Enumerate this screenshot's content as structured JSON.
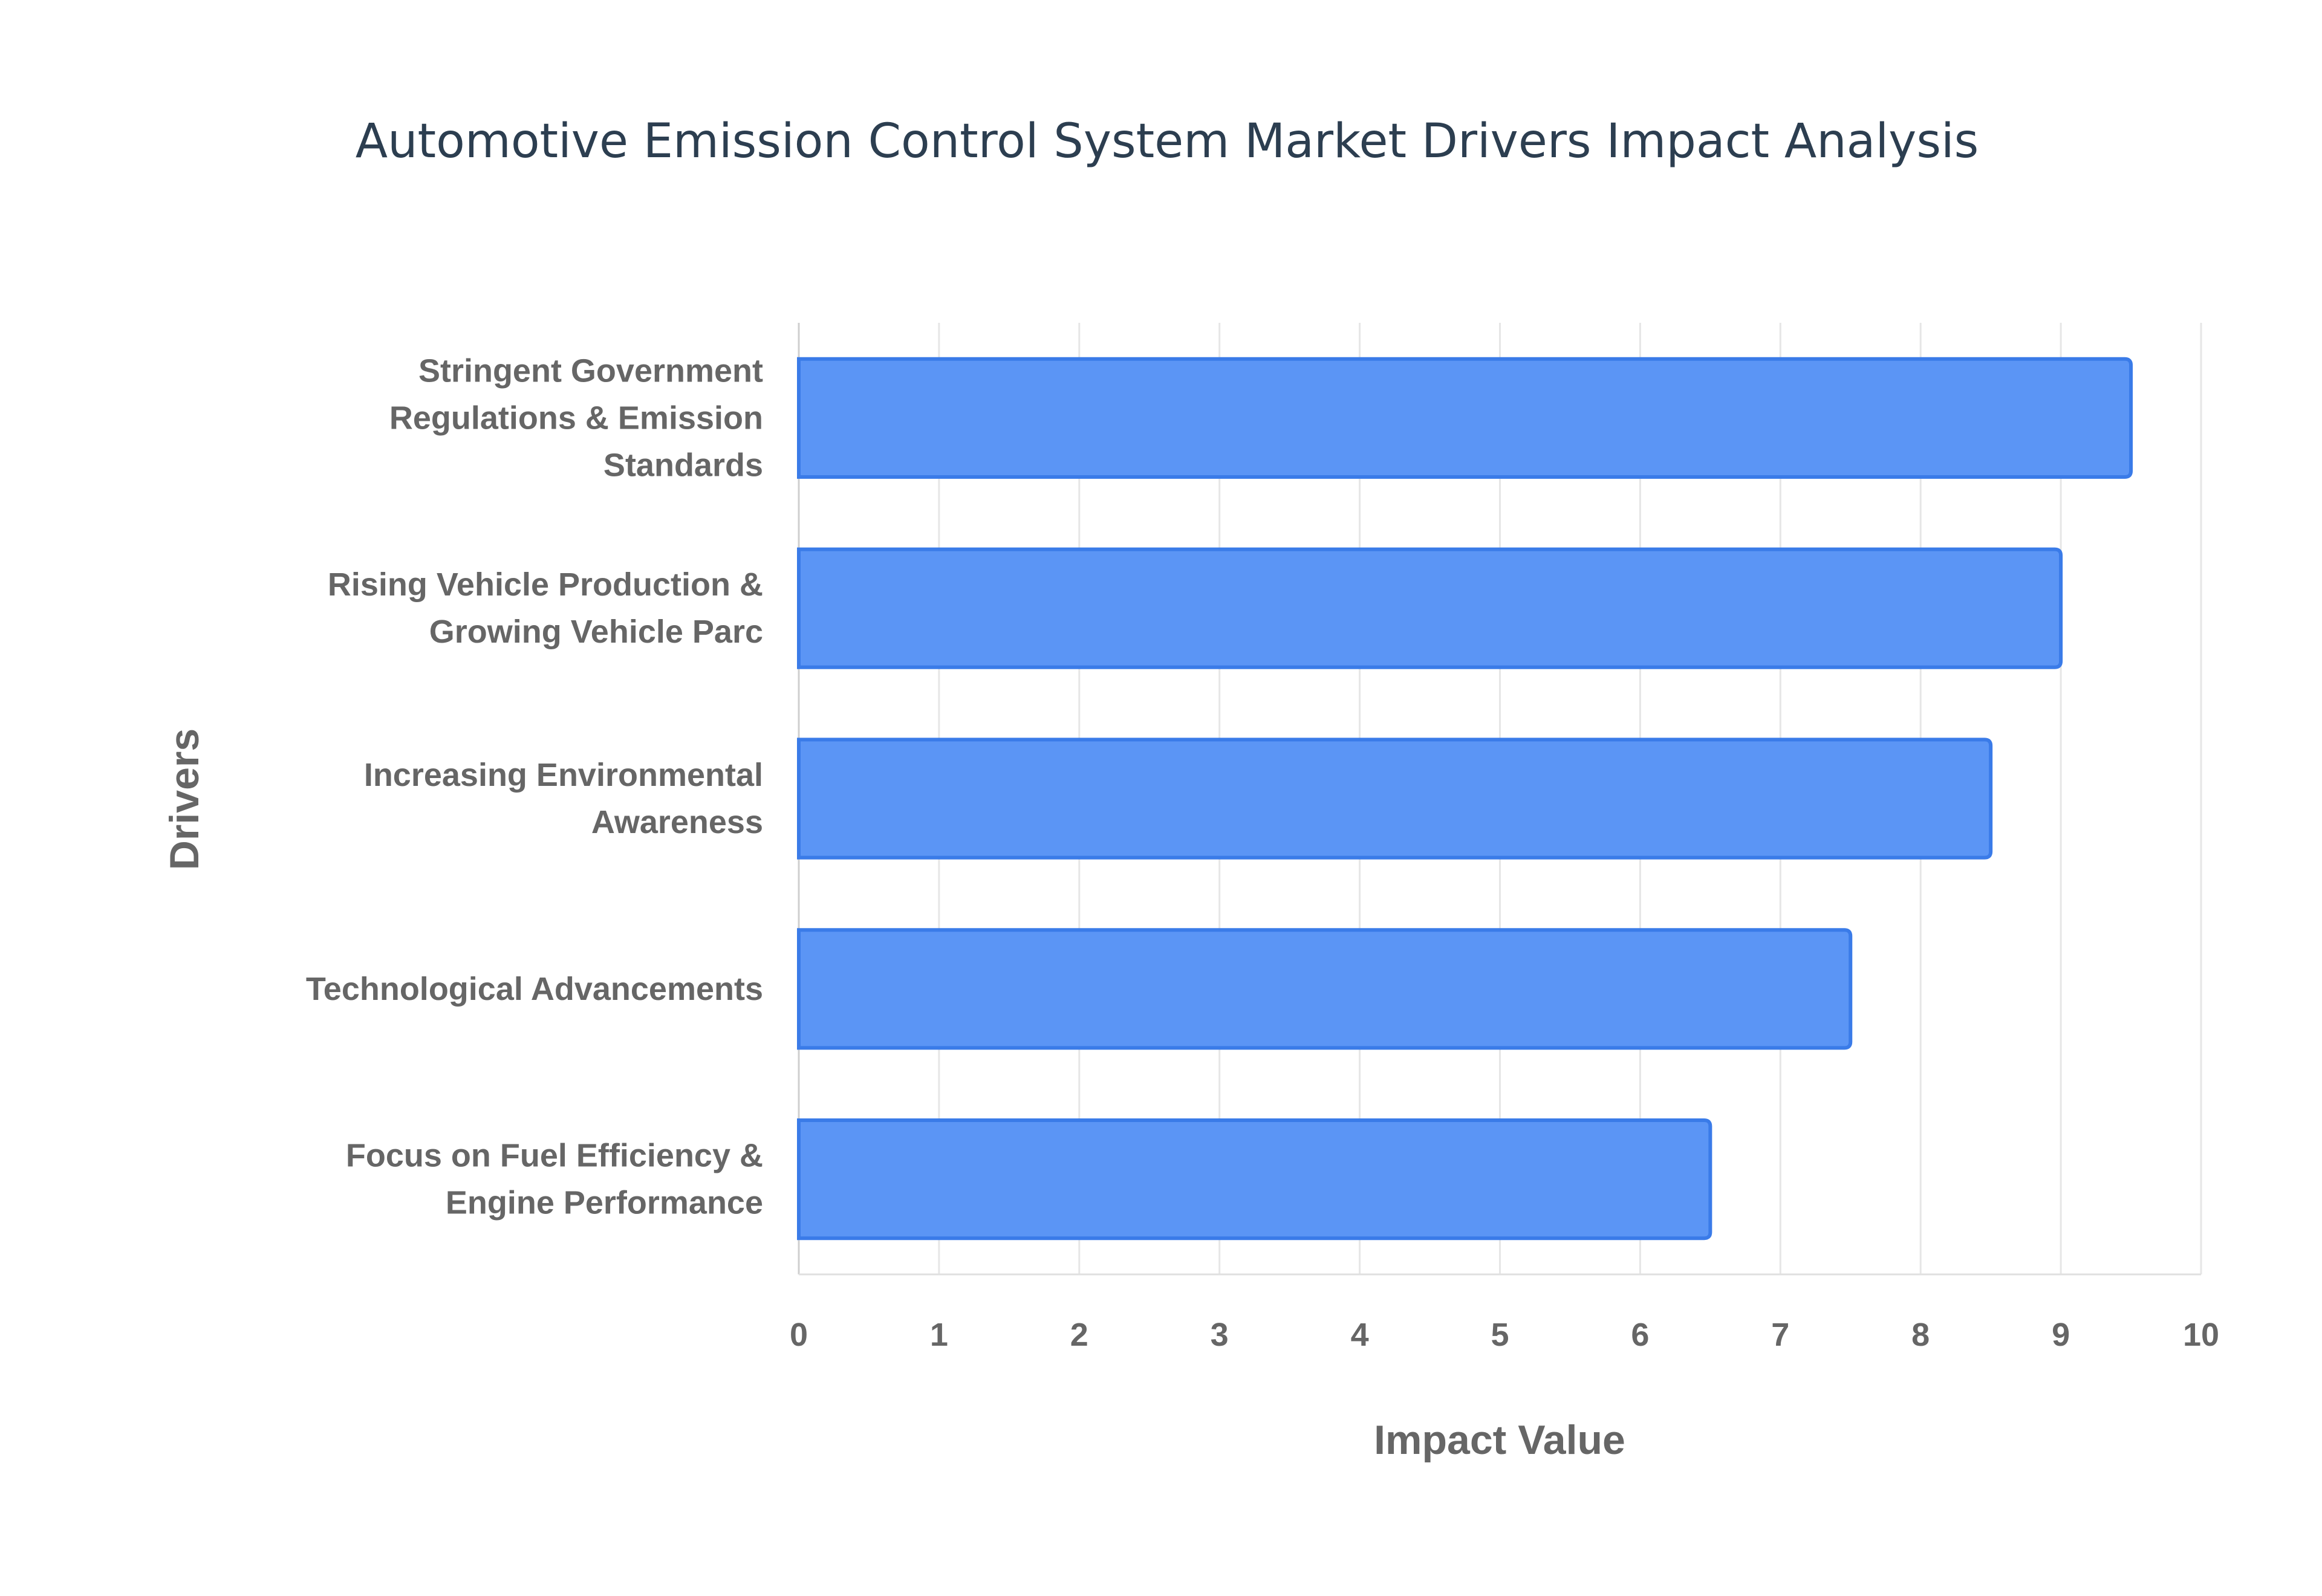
{
  "chart_data": {
    "type": "bar",
    "orientation": "horizontal",
    "title": "Automotive Emission Control System Market Drivers Impact Analysis",
    "xlabel": "Impact Value",
    "ylabel": "Drivers",
    "xlim": [
      0,
      10
    ],
    "xticks": [
      "0",
      "1",
      "2",
      "3",
      "4",
      "5",
      "6",
      "7",
      "8",
      "9",
      "10"
    ],
    "grid": true,
    "categories": [
      [
        "Stringent Government",
        "Regulations & Emission",
        "Standards"
      ],
      [
        "Rising Vehicle Production &",
        "Growing Vehicle Parc"
      ],
      [
        "Increasing Environmental",
        "Awareness"
      ],
      [
        "Technological Advancements"
      ],
      [
        "Focus on Fuel Efficiency &",
        "Engine Performance"
      ]
    ],
    "values": [
      9.5,
      9.0,
      8.5,
      7.5,
      6.5
    ],
    "colors": {
      "bar_fill": "#5b95f5",
      "bar_border": "#3a7be8",
      "grid": "#e6e6e6"
    }
  }
}
